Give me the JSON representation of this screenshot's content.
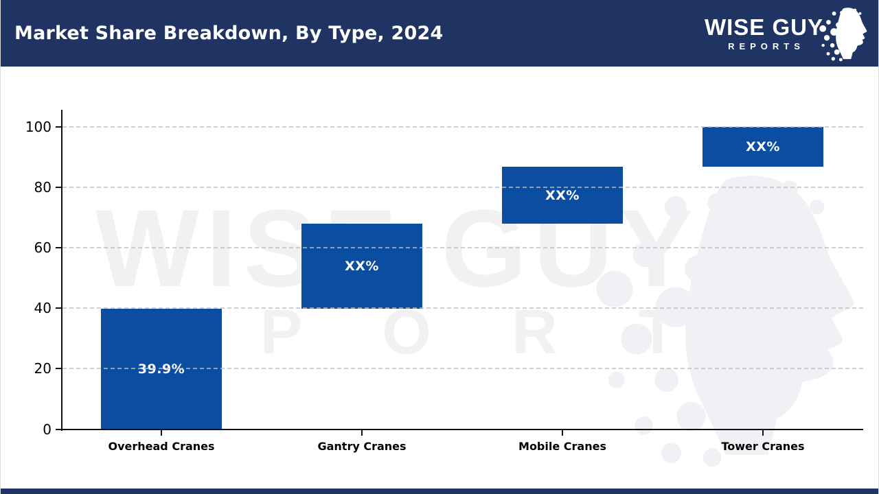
{
  "header": {
    "title": "Market Share Breakdown, By Type, 2024",
    "logo": {
      "line1": "WISE GUY",
      "line2": "REPORTS"
    }
  },
  "watermark": {
    "line1": "WISE GUY",
    "line2": "P O R T S"
  },
  "chart_data": {
    "type": "bar",
    "subtype": "waterfall",
    "title": "Market Share Breakdown, By Type, 2024",
    "categories": [
      "Overhead Cranes",
      "Gantry Cranes",
      "Mobile Cranes",
      "Tower Cranes"
    ],
    "segments": [
      {
        "category": "Overhead Cranes",
        "start": 0,
        "end": 39.9,
        "label": "39.9%"
      },
      {
        "category": "Gantry Cranes",
        "start": 39.9,
        "end": 67.9,
        "label": "XX%"
      },
      {
        "category": "Mobile Cranes",
        "start": 67.9,
        "end": 86.7,
        "label": "XX%"
      },
      {
        "category": "Tower Cranes",
        "start": 86.7,
        "end": 100,
        "label": "XX%"
      }
    ],
    "yticks": [
      0,
      20,
      40,
      60,
      80,
      100
    ],
    "ylim": [
      0,
      105.6
    ],
    "xlabel": "",
    "ylabel": "",
    "legend": "none",
    "grid": "horizontal dashed, drawn over bars",
    "bar_color": "#0b4da1"
  },
  "colors": {
    "header_bg": "#203464",
    "footer_bg": "#203464",
    "bar": "#0b4da1",
    "axis": "#111111",
    "grid": "#c8c8c8",
    "watermark": "#f0f1f4"
  }
}
